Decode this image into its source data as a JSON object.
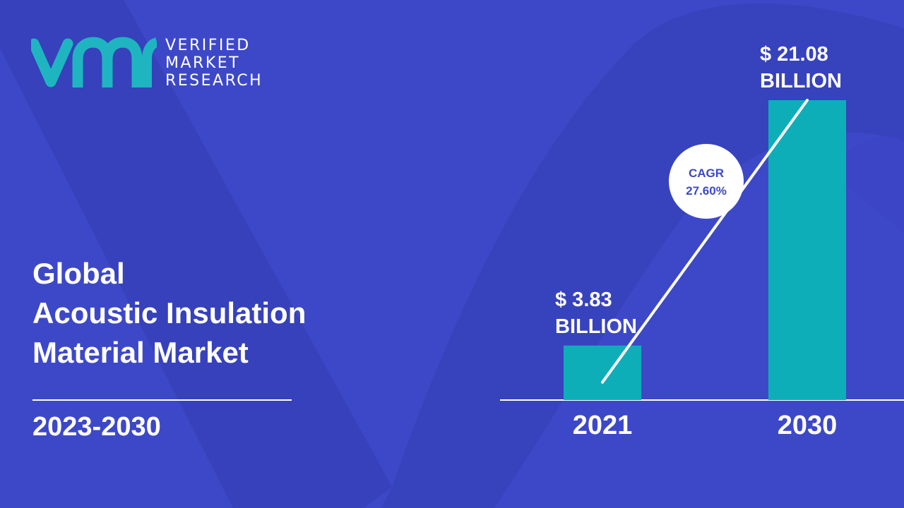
{
  "brand": {
    "logo_mark": "vmr",
    "lines": [
      "VERIFIED",
      "MARKET",
      "RESEARCH"
    ],
    "accent_color": "#1fb5c0"
  },
  "title": {
    "lines": [
      "Global",
      "Acoustic Insulation",
      "Material Market"
    ]
  },
  "period": "2023-2030",
  "colors": {
    "background": "#3d48c8",
    "bar": "#0eaeb9",
    "text": "#ffffff"
  },
  "chart_data": {
    "type": "bar",
    "categories": [
      "2021",
      "2030"
    ],
    "values": [
      3.83,
      21.08
    ],
    "value_labels": [
      [
        "$ 3.83",
        "BILLION"
      ],
      [
        "$ 21.08",
        "BILLION"
      ]
    ],
    "cagr": {
      "label": "CAGR",
      "value": "27.60%"
    },
    "title": "",
    "xlabel": "",
    "ylabel": ""
  }
}
